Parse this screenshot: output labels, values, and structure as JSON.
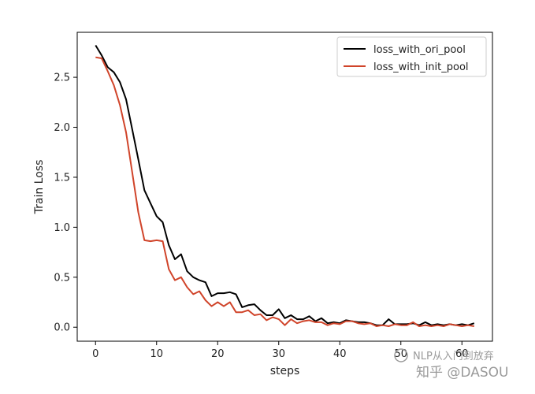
{
  "chart_data": {
    "type": "line",
    "xlabel": "steps",
    "ylabel": "Train Loss",
    "xlim": [
      -3,
      65
    ],
    "ylim": [
      -0.14,
      2.95
    ],
    "xticks": [
      0,
      10,
      20,
      30,
      40,
      50,
      60
    ],
    "yticks": [
      0.0,
      0.5,
      1.0,
      1.5,
      2.0,
      2.5
    ],
    "ytick_labels": [
      "0.0",
      "0.5",
      "1.0",
      "1.5",
      "2.0",
      "2.5"
    ],
    "legend_position": "top-right",
    "grid": false,
    "series": [
      {
        "name": "loss_with_ori_pool",
        "color": "#000000",
        "x": [
          0,
          1,
          2,
          3,
          4,
          5,
          6,
          7,
          8,
          9,
          10,
          11,
          12,
          13,
          14,
          15,
          16,
          17,
          18,
          19,
          20,
          21,
          22,
          23,
          24,
          25,
          26,
          27,
          28,
          29,
          30,
          31,
          32,
          33,
          34,
          35,
          36,
          37,
          38,
          39,
          40,
          41,
          42,
          43,
          44,
          45,
          46,
          47,
          48,
          49,
          50,
          51,
          52,
          53,
          54,
          55,
          56,
          57,
          58,
          59,
          60,
          61,
          62
        ],
        "y": [
          2.82,
          2.72,
          2.6,
          2.55,
          2.45,
          2.28,
          1.98,
          1.68,
          1.37,
          1.24,
          1.11,
          1.05,
          0.82,
          0.68,
          0.73,
          0.56,
          0.5,
          0.47,
          0.45,
          0.31,
          0.34,
          0.34,
          0.35,
          0.33,
          0.2,
          0.22,
          0.23,
          0.17,
          0.12,
          0.12,
          0.18,
          0.09,
          0.12,
          0.08,
          0.08,
          0.11,
          0.06,
          0.09,
          0.04,
          0.05,
          0.04,
          0.07,
          0.06,
          0.05,
          0.05,
          0.04,
          0.02,
          0.02,
          0.08,
          0.03,
          0.03,
          0.03,
          0.04,
          0.02,
          0.05,
          0.02,
          0.03,
          0.02,
          0.03,
          0.02,
          0.03,
          0.02,
          0.04
        ]
      },
      {
        "name": "loss_with_init_pool",
        "color": "#d0442a",
        "x": [
          0,
          1,
          2,
          3,
          4,
          5,
          6,
          7,
          8,
          9,
          10,
          11,
          12,
          13,
          14,
          15,
          16,
          17,
          18,
          19,
          20,
          21,
          22,
          23,
          24,
          25,
          26,
          27,
          28,
          29,
          30,
          31,
          32,
          33,
          34,
          35,
          36,
          37,
          38,
          39,
          40,
          41,
          42,
          43,
          44,
          45,
          46,
          47,
          48,
          49,
          50,
          51,
          52,
          53,
          54,
          55,
          56,
          57,
          58,
          59,
          60,
          61,
          62
        ],
        "y": [
          2.7,
          2.69,
          2.56,
          2.42,
          2.22,
          1.95,
          1.55,
          1.15,
          0.87,
          0.86,
          0.87,
          0.86,
          0.58,
          0.47,
          0.5,
          0.4,
          0.33,
          0.36,
          0.27,
          0.21,
          0.25,
          0.21,
          0.25,
          0.15,
          0.15,
          0.17,
          0.12,
          0.13,
          0.07,
          0.1,
          0.08,
          0.02,
          0.08,
          0.04,
          0.06,
          0.07,
          0.05,
          0.05,
          0.02,
          0.04,
          0.03,
          0.06,
          0.06,
          0.04,
          0.03,
          0.04,
          0.01,
          0.02,
          0.01,
          0.03,
          0.02,
          0.02,
          0.05,
          0.01,
          0.02,
          0.01,
          0.02,
          0.01,
          0.03,
          0.02,
          0.01,
          0.02,
          0.01
        ]
      }
    ]
  },
  "watermark": {
    "line1": "NLP从入门到放弃",
    "line2": "知乎 @DASOU"
  }
}
